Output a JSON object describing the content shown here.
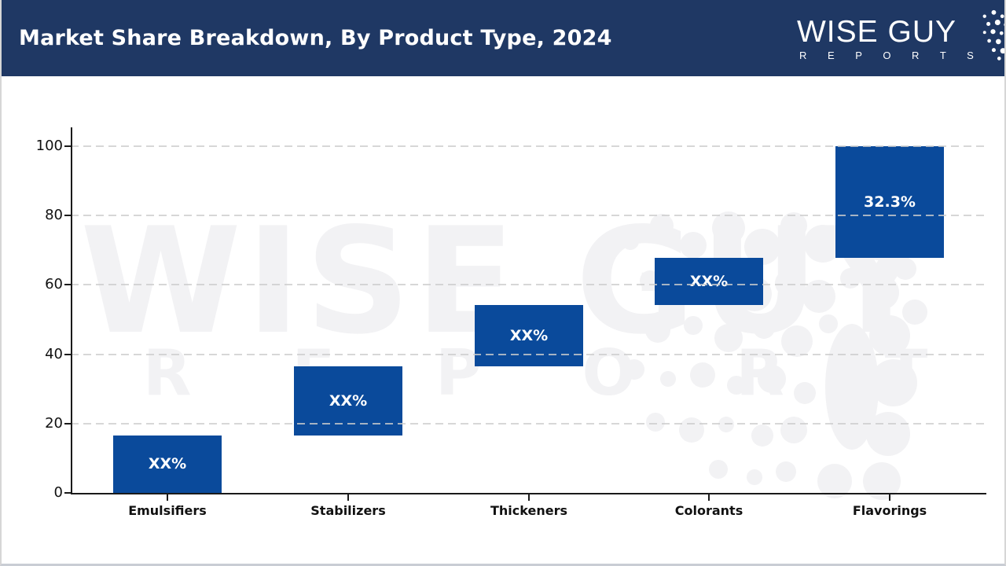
{
  "header": {
    "title": "Market Share Breakdown, By Product Type, 2024",
    "logo": {
      "line1": "WISE GUY",
      "line2": "REPORTS"
    }
  },
  "watermark": {
    "line1": "WISE GUY",
    "line2": "REPORTS"
  },
  "colors": {
    "header_bg": "#1f3864",
    "bar_blue": "#0a4a9b",
    "grid_gray": "#dcdcdc",
    "watermark_gray": "#f2f2f4",
    "axis_black": "#1a1a1a",
    "title_white": "#ffffff"
  },
  "chart_data": {
    "type": "bar",
    "subtype": "waterfall",
    "title": "Market Share Breakdown, By Product Type, 2024",
    "xlabel": "",
    "ylabel": "",
    "categories": [
      "Emulsifiers",
      "Stabilizers",
      "Thickeners",
      "Colorants",
      "Flavorings"
    ],
    "segments": [
      {
        "category": "Emulsifiers",
        "start": 0,
        "end": 16.6,
        "value_label": "XX%"
      },
      {
        "category": "Stabilizers",
        "start": 16.6,
        "end": 36.6,
        "value_label": "XX%"
      },
      {
        "category": "Thickeners",
        "start": 36.6,
        "end": 54.1,
        "value_label": "XX%"
      },
      {
        "category": "Colorants",
        "start": 54.1,
        "end": 67.7,
        "value_label": "XX%"
      },
      {
        "category": "Flavorings",
        "start": 67.7,
        "end": 100,
        "value_label": "32.3%"
      }
    ],
    "yticks": [
      0,
      20,
      40,
      60,
      80,
      100
    ],
    "ylim": [
      0,
      100
    ],
    "grid": "horizontal-dashed",
    "legend": "none",
    "bar_color": "#0a4a9b",
    "value_label_color": "#ffffff"
  }
}
